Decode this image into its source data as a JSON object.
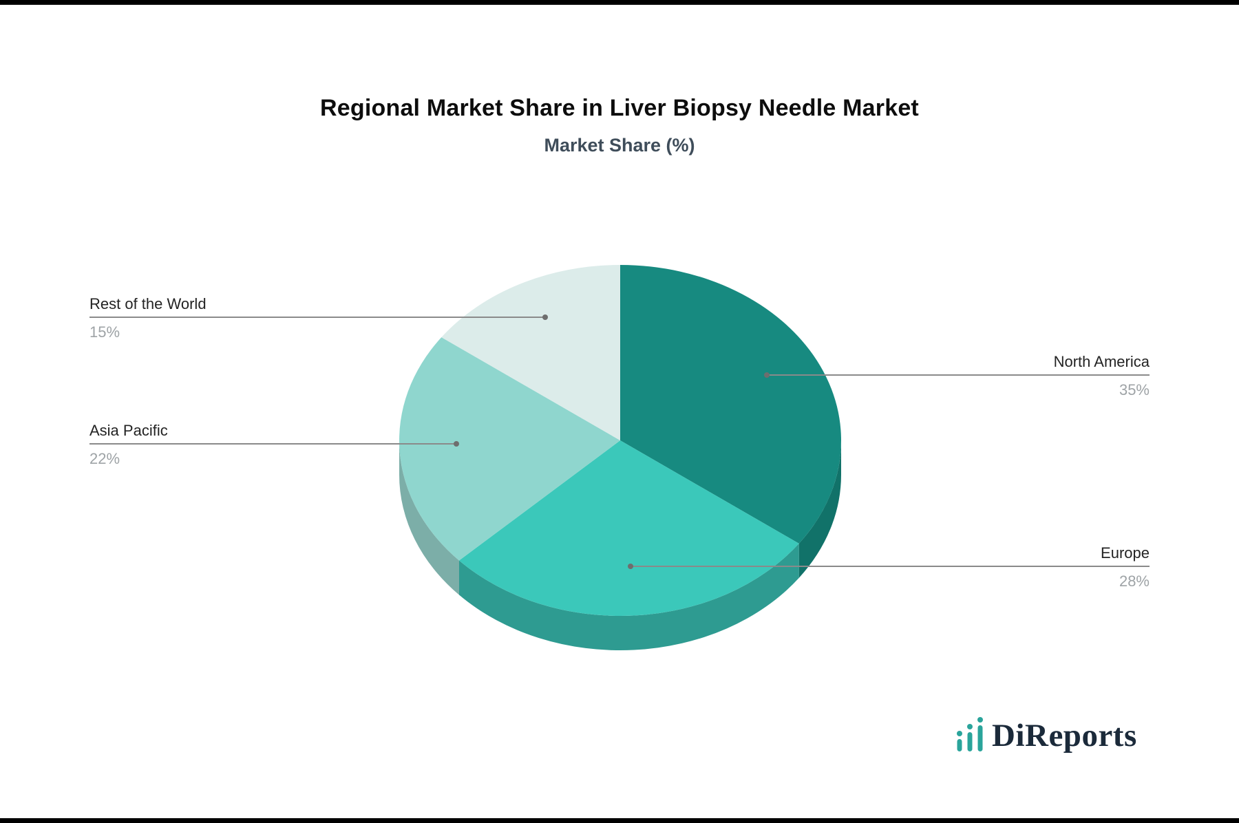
{
  "header": {
    "title": "Regional Market Share in Liver Biopsy Needle Market",
    "subtitle": "Market Share (%)"
  },
  "chart_data": {
    "type": "pie",
    "title": "Regional Market Share in Liver Biopsy Needle Market",
    "subtitle": "Market Share (%)",
    "unit": "%",
    "style": "3d-pie",
    "start_angle": "12-o-clock",
    "direction": "clockwise",
    "legend": "none",
    "labels": [
      "North America",
      "Europe",
      "Asia Pacific",
      "Rest of the World"
    ],
    "values": [
      35,
      28,
      22,
      15
    ],
    "display_values": [
      "35%",
      "28%",
      "22%",
      "15%"
    ],
    "colors": [
      "#178a80",
      "#3bc8ba",
      "#8fd6ce",
      "#dcecea"
    ],
    "side_colors": [
      "#117269",
      "#2e9b91",
      "#7caea8",
      "#c8dedb"
    ]
  },
  "logo": {
    "text": "DiReports"
  }
}
